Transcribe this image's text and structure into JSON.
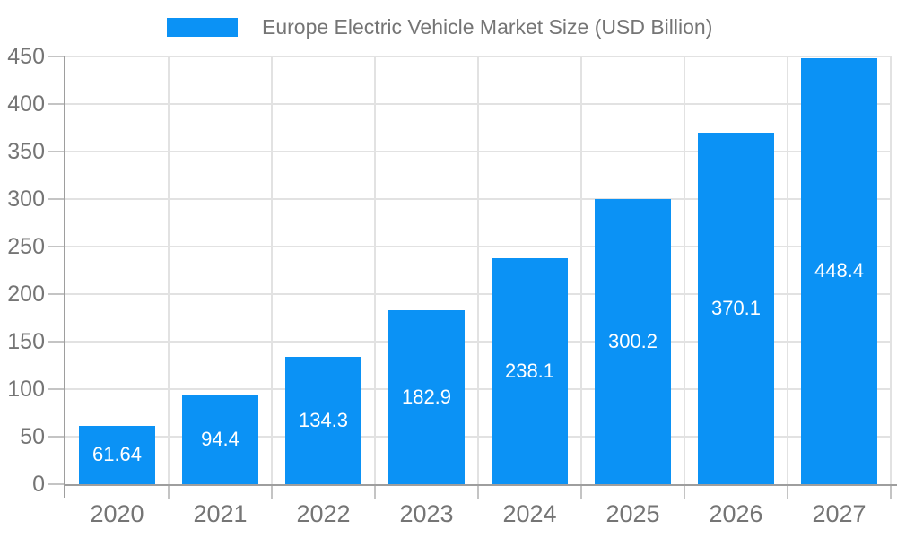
{
  "colors": {
    "bar": "#0b92f5",
    "axis_line": "#9e9e9e",
    "gridline": "#e2e2e2",
    "tick": "#c4c4c4",
    "label_text": "#757575",
    "value_label_text": "#ffffff",
    "background": "#ffffff"
  },
  "legend": {
    "label": "Europe Electric Vehicle Market Size (USD Billion)"
  },
  "chart_data": {
    "type": "bar",
    "title": "Europe Electric Vehicle Market Size (USD Billion)",
    "series": [
      {
        "name": "Europe Electric Vehicle Market Size (USD Billion)",
        "values": [
          61.64,
          94.4,
          134.3,
          182.9,
          238.1,
          300.2,
          370.1,
          448.4
        ]
      }
    ],
    "categories": [
      "2020",
      "2021",
      "2022",
      "2023",
      "2024",
      "2025",
      "2026",
      "2027"
    ],
    "value_labels": [
      "61.64",
      "94.4",
      "134.3",
      "182.9",
      "238.1",
      "300.2",
      "370.1",
      "448.4"
    ],
    "xlabel": "",
    "ylabel": "",
    "ylim": [
      0,
      450
    ],
    "ytick_step": 50,
    "yticks": [
      0,
      50,
      100,
      150,
      200,
      250,
      300,
      350,
      400,
      450
    ],
    "grid": true,
    "vertical_category_gridlines": true,
    "legend_position": "top",
    "value_label_position": "inside-center"
  }
}
